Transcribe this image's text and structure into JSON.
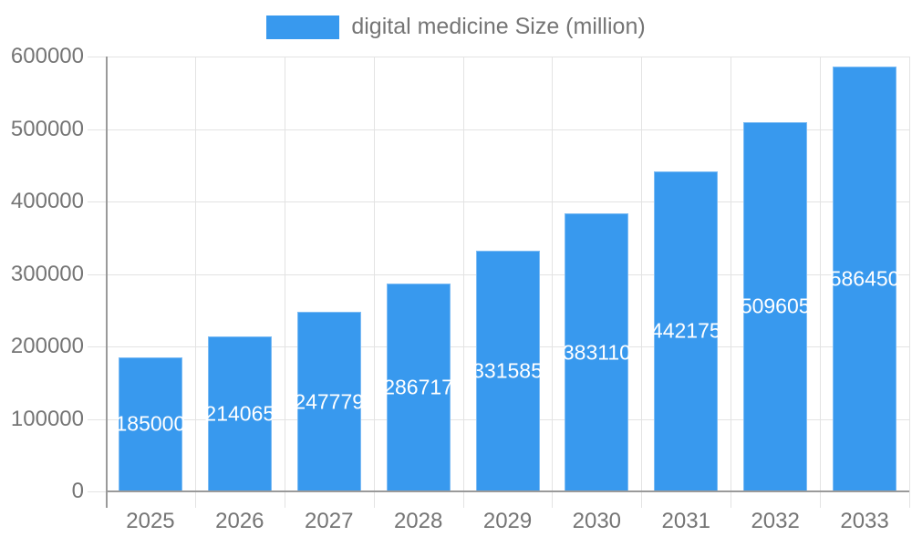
{
  "legend": {
    "label": "digital medicine Size (million)"
  },
  "colors": {
    "bar": "#3899ee",
    "grid": "#e3e3e3",
    "axis": "#9a9a9a",
    "axis_text": "#757575",
    "value_label": "#ffffff",
    "background": "#ffffff"
  },
  "chart_data": {
    "type": "bar",
    "title": "",
    "legend": [
      "digital medicine Size (million)"
    ],
    "legend_position": "top-center",
    "categories": [
      "2025",
      "2026",
      "2027",
      "2028",
      "2029",
      "2030",
      "2031",
      "2032",
      "2033"
    ],
    "values": [
      185000,
      214065,
      247779,
      286717,
      331585,
      383110,
      442175,
      509605,
      586450
    ],
    "value_labels_style": "white text centered inside each bar",
    "xlabel": "",
    "ylabel": "",
    "ylim": [
      0,
      600000
    ],
    "yticks": [
      0,
      100000,
      200000,
      300000,
      400000,
      500000,
      600000
    ],
    "grid": true
  }
}
